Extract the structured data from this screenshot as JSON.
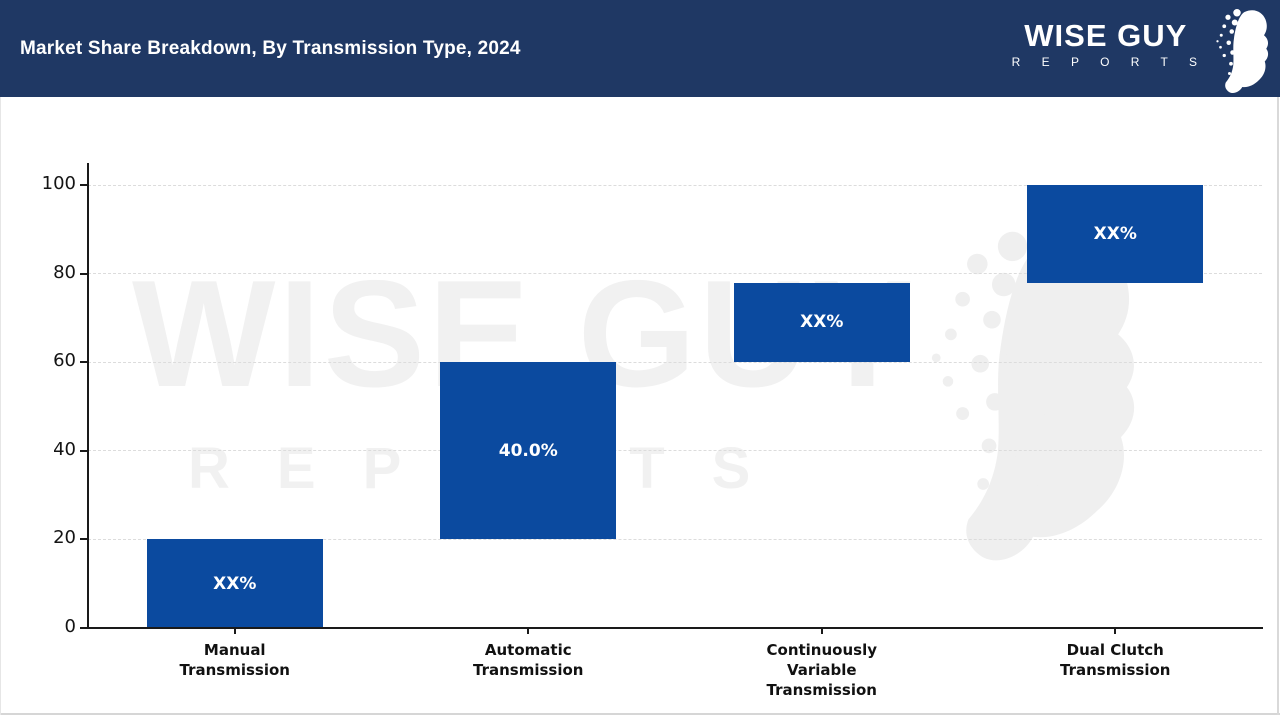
{
  "header": {
    "title": "Market Share Breakdown, By Transmission Type, 2024",
    "logo": {
      "line1": "WISE GUY",
      "line2": "R E P O R T S"
    }
  },
  "watermark": {
    "line1": "WISE GUY",
    "line2": "REPORTS"
  },
  "chart_data": {
    "type": "bar",
    "subtype": "waterfall",
    "title": "Market Share Breakdown, By Transmission Type, 2024",
    "categories": [
      "Manual Transmission",
      "Automatic Transmission",
      "Continuously Variable Transmission",
      "Dual Clutch Transmission"
    ],
    "category_lines": [
      [
        "Manual",
        "Transmission"
      ],
      [
        "Automatic",
        "Transmission"
      ],
      [
        "Continuously",
        "Variable",
        "Transmission"
      ],
      [
        "Dual Clutch",
        "Transmission"
      ]
    ],
    "bars": [
      {
        "category": "Manual Transmission",
        "start": 0,
        "end": 20,
        "label": "XX%"
      },
      {
        "category": "Automatic Transmission",
        "start": 20,
        "end": 60,
        "label": "40.0%"
      },
      {
        "category": "Continuously Variable Transmission",
        "start": 60,
        "end": 78,
        "label": "XX%"
      },
      {
        "category": "Dual Clutch Transmission",
        "start": 78,
        "end": 100,
        "label": "XX%"
      }
    ],
    "y_ticks": [
      0,
      20,
      40,
      60,
      80,
      100
    ],
    "ylim": [
      0,
      105
    ],
    "xlabel": "",
    "ylabel": "",
    "grid": true,
    "grid_style": "dashed",
    "legend": "none",
    "style": {
      "bar_color": "#0B4A9F",
      "value_label_color": "#FFFFFF",
      "grid_color": "#DCDCDC",
      "axis_color": "#1A1A1A",
      "header_bg": "#1F3864",
      "watermark_color": "#F1F1F1"
    }
  }
}
